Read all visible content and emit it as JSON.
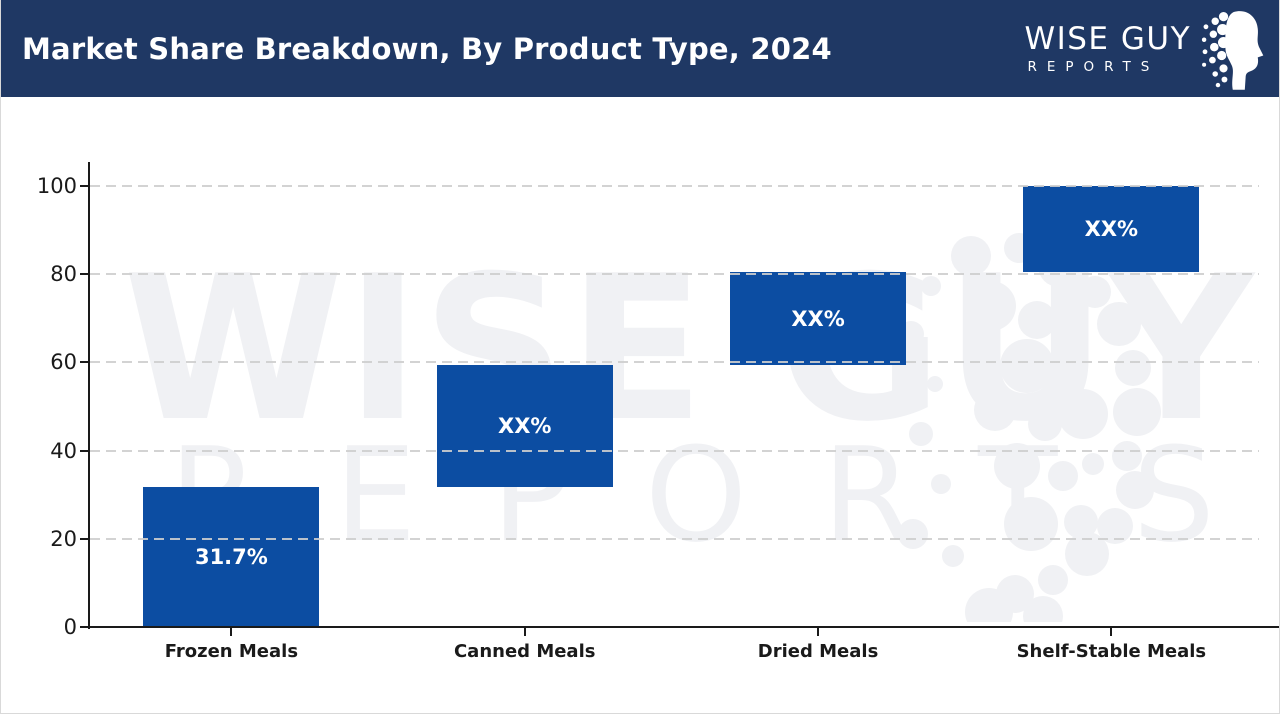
{
  "header": {
    "title": "Market Share Breakdown, By Product Type, 2024",
    "background": "#1f3864",
    "logo": {
      "line1": "WISE GUY",
      "line2": "REPORTS"
    }
  },
  "watermark": {
    "line1": "WISE GUY",
    "line2": "REPORTS"
  },
  "chart_data": {
    "type": "bar",
    "subtype": "waterfall",
    "title": "Market Share Breakdown, By Product Type, 2024",
    "xlabel": "",
    "ylabel": "",
    "categories": [
      "Frozen Meals",
      "Canned Meals",
      "Dried Meals",
      "Shelf-Stable Meals"
    ],
    "segments": [
      {
        "category": "Frozen Meals",
        "start": 0,
        "end": 31.7,
        "label": "31.7%"
      },
      {
        "category": "Canned Meals",
        "start": 31.7,
        "end": 59.4,
        "label": "XX%"
      },
      {
        "category": "Dried Meals",
        "start": 59.4,
        "end": 80.5,
        "label": "XX%"
      },
      {
        "category": "Shelf-Stable Meals",
        "start": 80.5,
        "end": 100,
        "label": "XX%"
      }
    ],
    "yticks": [
      0,
      20,
      40,
      60,
      80,
      100
    ],
    "ylim": [
      0,
      105
    ],
    "grid": "horizontal-dashed",
    "legend": false,
    "colors": {
      "bar": "#0c4da2",
      "bar_label": "#ffffff",
      "axis": "#1a1a1a",
      "tick_label": "#1a1a1a",
      "grid": "#d4d4d4",
      "watermark": "#f0f1f4"
    }
  }
}
